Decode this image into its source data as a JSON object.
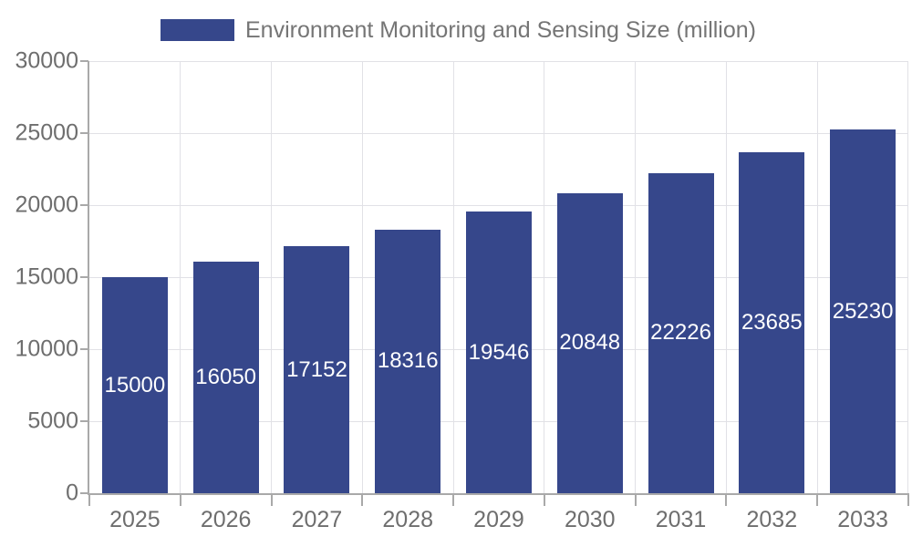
{
  "legend": {
    "label": "Environment Monitoring and Sensing Size (million)"
  },
  "chart_data": {
    "type": "bar",
    "title": "Environment Monitoring and Sensing Size (million)",
    "categories": [
      "2025",
      "2026",
      "2027",
      "2028",
      "2029",
      "2030",
      "2031",
      "2032",
      "2033"
    ],
    "values": [
      15000,
      16050,
      17152,
      18316,
      19546,
      20848,
      22226,
      23685,
      25230
    ],
    "series": [
      {
        "name": "Environment Monitoring and Sensing Size (million)",
        "values": [
          15000,
          16050,
          17152,
          18316,
          19546,
          20848,
          22226,
          23685,
          25230
        ]
      }
    ],
    "xlabel": "",
    "ylabel": "",
    "ylim": [
      0,
      30000
    ],
    "yticks": [
      0,
      5000,
      10000,
      15000,
      20000,
      25000,
      30000
    ],
    "grid": true,
    "legend_position": "top",
    "bar_label_position": "center"
  },
  "colors": {
    "bar": "#36478B",
    "bar_label": "#ffffff",
    "grid": "#e1e1e6",
    "axis": "#a9a9a9",
    "tick_text": "#6e6e6e",
    "legend_text": "#757575",
    "background": "#ffffff"
  }
}
